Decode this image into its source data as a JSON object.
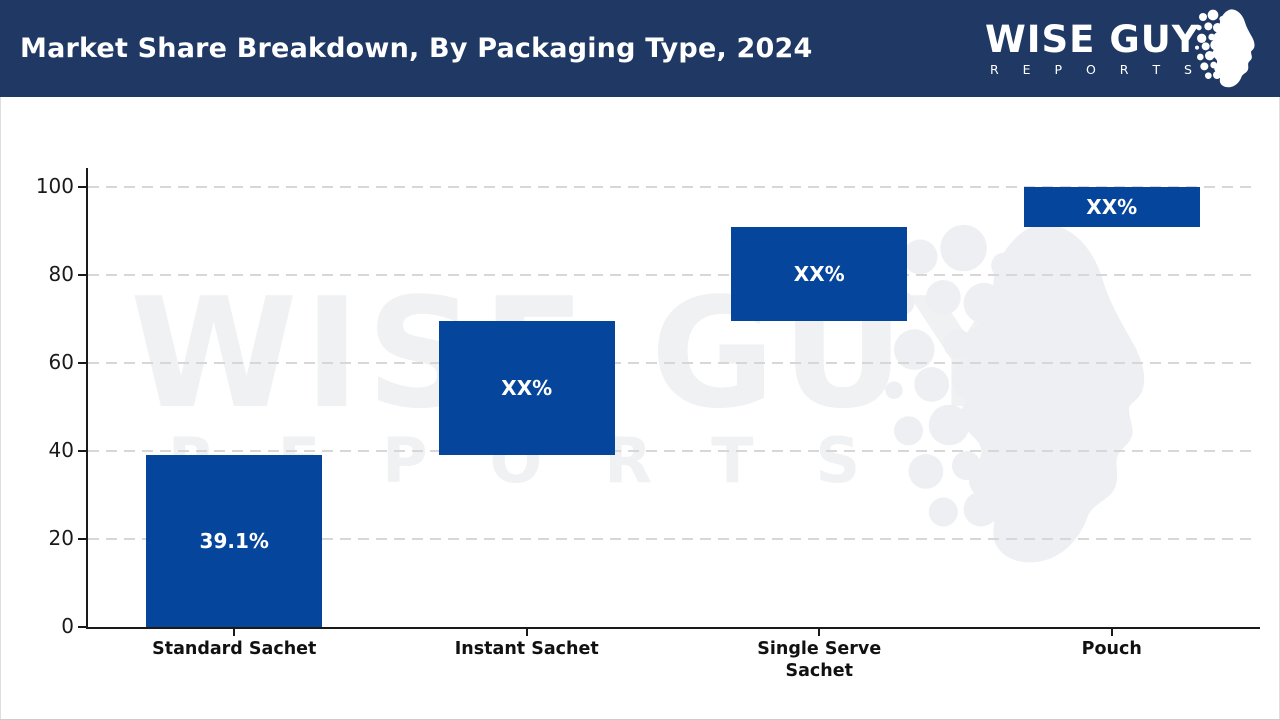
{
  "header": {
    "title": "Market Share Breakdown, By Packaging Type, 2024",
    "bg_color": "#1f3864",
    "logo": {
      "wordmark": "WISE GUY",
      "subtext": "R E P O R T S"
    }
  },
  "watermark": {
    "line1": "WISE GUY",
    "line2": "REPORTS"
  },
  "chart_data": {
    "type": "bar",
    "variant": "waterfall",
    "title": "Market Share Breakdown, By Packaging Type, 2024",
    "categories": [
      "Standard Sachet",
      "Instant Sachet",
      "Single Serve\nSachet",
      "Pouch"
    ],
    "bars": [
      {
        "category": "Standard Sachet",
        "start": 0,
        "end": 39.1,
        "label": "39.1%"
      },
      {
        "category": "Instant Sachet",
        "start": 39.1,
        "end": 69.5,
        "label": "XX%"
      },
      {
        "category": "Single Serve Sachet",
        "start": 69.5,
        "end": 90.9,
        "label": "XX%"
      },
      {
        "category": "Pouch",
        "start": 90.9,
        "end": 100,
        "label": "XX%"
      }
    ],
    "xlabel": "",
    "ylabel": "",
    "ylim": [
      0,
      100
    ],
    "yticks": [
      0,
      20,
      40,
      60,
      80,
      100
    ],
    "grid": {
      "axis": "y",
      "style": "dashed",
      "color": "#d7d7d7"
    },
    "legend": false,
    "bar_color": "#05459b",
    "bar_label_color": "#ffffff",
    "axis_color": "#1a1a1a",
    "tick_label_color": "#1a1a1a"
  }
}
